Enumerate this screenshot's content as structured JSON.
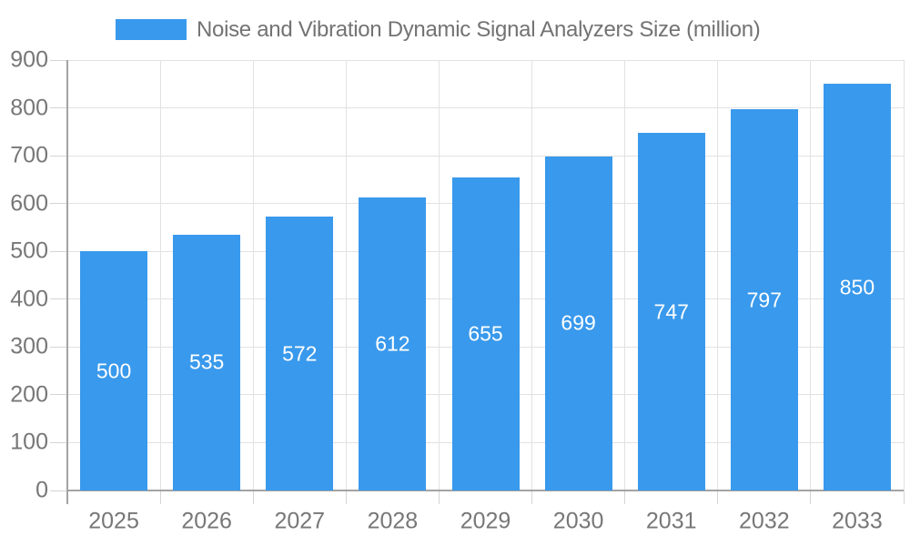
{
  "chart_data": {
    "type": "bar",
    "title": "Noise and Vibration Dynamic Signal Analyzers Size (million)",
    "categories": [
      "2025",
      "2026",
      "2027",
      "2028",
      "2029",
      "2030",
      "2031",
      "2032",
      "2033"
    ],
    "values": [
      500,
      535,
      572,
      612,
      655,
      699,
      747,
      797,
      850
    ],
    "xlabel": "",
    "ylabel": "",
    "ylim": [
      0,
      900
    ],
    "ytick_step": 100,
    "grid": true,
    "legend_position": "top",
    "value_labels": "inside-center",
    "colors": {
      "bar": "#3999EC",
      "value_label": "#ffffff",
      "axis_text": "#777777",
      "title_text": "#737373",
      "gridline": "#e2e2e2",
      "axis_line": "#a3a3a3",
      "tick": "#d4d4d4",
      "background": "#ffffff"
    }
  }
}
